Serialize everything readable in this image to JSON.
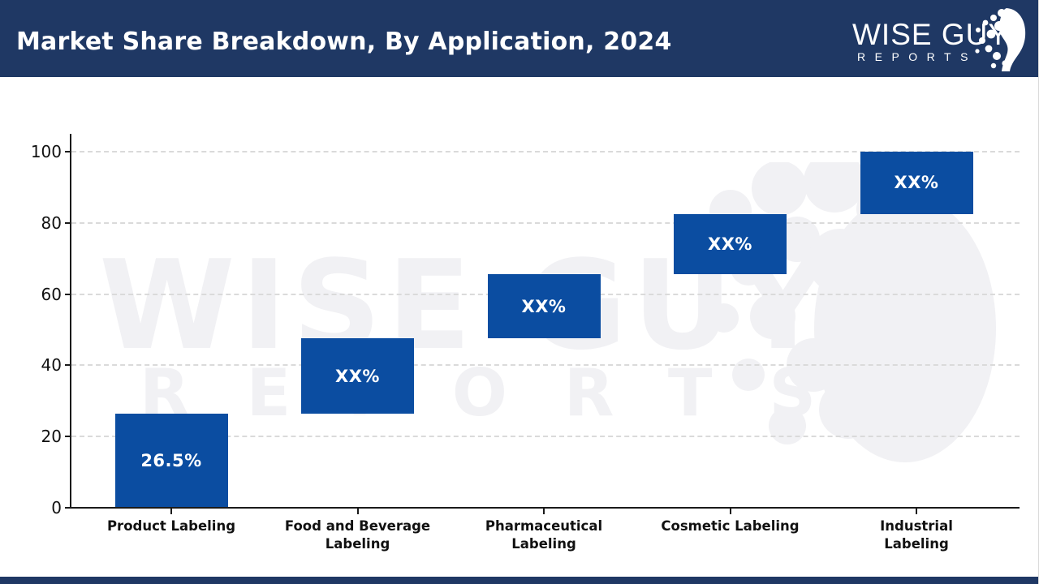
{
  "header": {
    "title": "Market Share Breakdown, By Application, 2024",
    "logo": {
      "line1": "WISE GUY",
      "line2": "REPORTS"
    }
  },
  "watermark": {
    "line1": "WISE GUY",
    "line2": "REPORTS"
  },
  "chart_data": {
    "type": "bar",
    "subtype": "waterfall",
    "title": "Market Share Breakdown, By Application, 2024",
    "categories": [
      "Product Labeling",
      "Food and Beverage\nLabeling",
      "Pharmaceutical\nLabeling",
      "Cosmetic Labeling",
      "Industrial\nLabeling"
    ],
    "segments": [
      {
        "category": "Product Labeling",
        "start": 0,
        "end": 26.5,
        "label": "26.5%"
      },
      {
        "category": "Food and Beverage Labeling",
        "start": 26.5,
        "end": 47.5,
        "label": "XX%"
      },
      {
        "category": "Pharmaceutical Labeling",
        "start": 47.5,
        "end": 65.5,
        "label": "XX%"
      },
      {
        "category": "Cosmetic Labeling",
        "start": 65.5,
        "end": 82.5,
        "label": "XX%"
      },
      {
        "category": "Industrial Labeling",
        "start": 82.5,
        "end": 100,
        "label": "XX%"
      }
    ],
    "yticks": [
      0,
      20,
      40,
      60,
      80,
      100
    ],
    "ylim": [
      0,
      105
    ],
    "xlabel": "",
    "ylabel": "",
    "grid": "horizontal-dashed",
    "legend": "none"
  },
  "colors": {
    "header_bar": "#1F3864",
    "footer_bar": "#1F3864",
    "bar_fill": "#0B4DA1",
    "bar_label_text": "#FFFFFF",
    "gridline": "#DADADA",
    "axis": "#1A1A1A",
    "tick_text": "#111111",
    "watermark": "#F1F1F4",
    "title_text": "#FFFFFF"
  }
}
